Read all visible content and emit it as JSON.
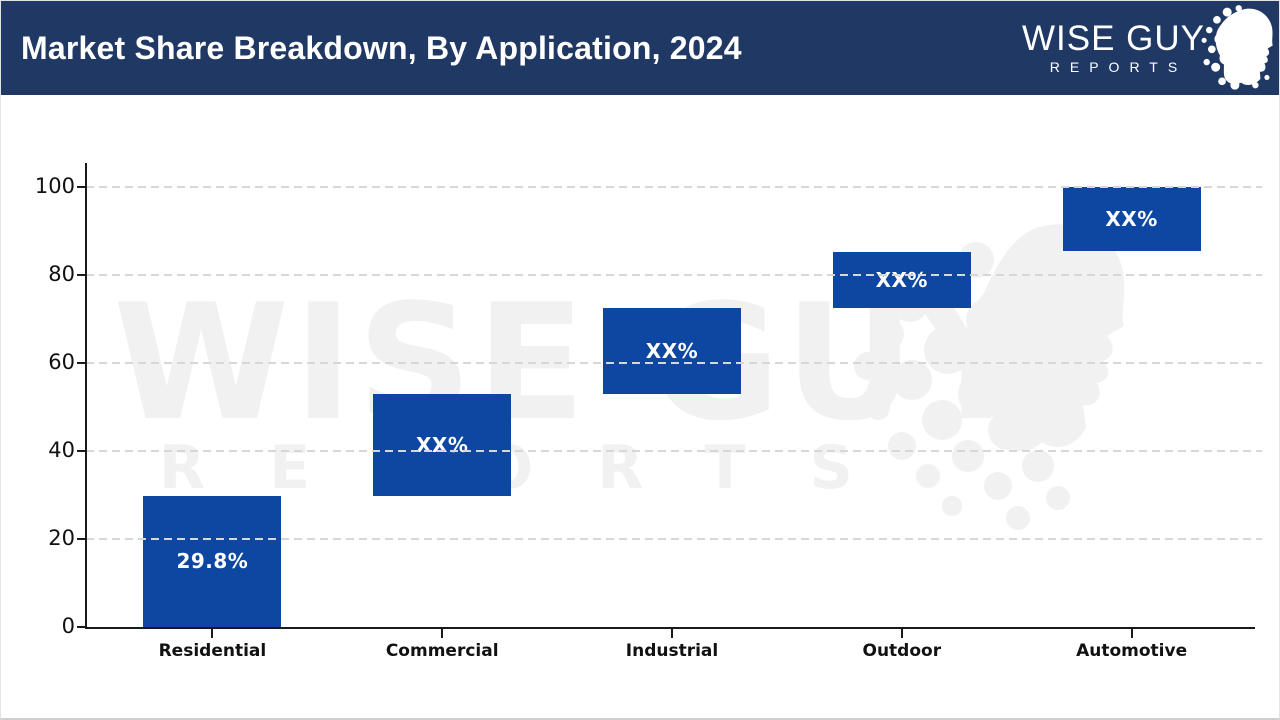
{
  "header": {
    "title": "Market Share Breakdown, By Application, 2024",
    "background_color": "#203864",
    "logo": {
      "brand_line1": "WISE GUY",
      "brand_line2": "REPORTS"
    }
  },
  "watermark": {
    "line1": "WISE GUY",
    "line2": "REPORTS",
    "color": "#f1f1f1"
  },
  "chart_data": {
    "type": "bar",
    "subtype": "waterfall",
    "title": "Market Share Breakdown, By Application, 2024",
    "xlabel": "",
    "ylabel": "",
    "categories": [
      "Residential",
      "Commercial",
      "Industrial",
      "Outdoor",
      "Automotive"
    ],
    "segments": [
      {
        "category": "Residential",
        "start": 0,
        "end": 29.8,
        "label": "29.8%"
      },
      {
        "category": "Commercial",
        "start": 29.8,
        "end": 53.0,
        "label": "XX%"
      },
      {
        "category": "Industrial",
        "start": 53.0,
        "end": 72.5,
        "label": "XX%"
      },
      {
        "category": "Outdoor",
        "start": 72.5,
        "end": 85.2,
        "label": "XX%"
      },
      {
        "category": "Automotive",
        "start": 85.5,
        "end": 100.0,
        "label": "XX%"
      }
    ],
    "yticks": [
      0,
      20,
      40,
      60,
      80,
      100
    ],
    "ylim": [
      0,
      105
    ],
    "grid": "horizontal-dashed",
    "grid_color": "#d7d7d7",
    "bar_color": "#0d47a1",
    "bar_label_color": "#ffffff",
    "axis_color": "#1a1a1a",
    "legend": "none"
  }
}
